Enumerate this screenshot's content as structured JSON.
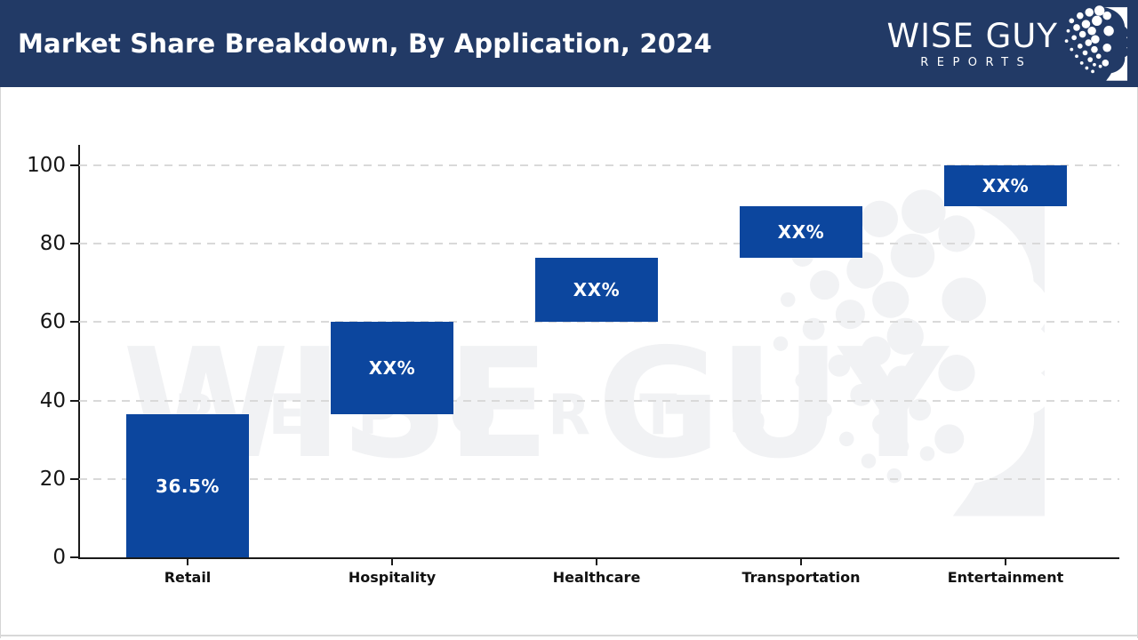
{
  "colors": {
    "header_bg": "#223a66",
    "bar": "#0c469e",
    "grid": "#d9d9d9",
    "axis": "#1a1a1a",
    "watermark": "#f1f2f4"
  },
  "header": {
    "title": "Market Share Breakdown, By Application, 2024",
    "logo_line1": "WISE GUY",
    "logo_line2": "REPORTS"
  },
  "watermark": {
    "line1": "WISE GUY",
    "line2": "REPORTS"
  },
  "chart_data": {
    "type": "bar",
    "subtype": "waterfall",
    "title": "Market Share Breakdown, By Application, 2024",
    "xlabel": "",
    "ylabel": "",
    "ylim": [
      0,
      105
    ],
    "yticks": [
      0,
      20,
      40,
      60,
      80,
      100
    ],
    "grid": "dashed horizontal",
    "legend": "none",
    "categories": [
      "Retail",
      "Hospitality",
      "Healthcare",
      "Transportation",
      "Entertainment"
    ],
    "bars": [
      {
        "category": "Retail",
        "start": 0,
        "end": 36.5,
        "value": 36.5,
        "label": "36.5%"
      },
      {
        "category": "Hospitality",
        "start": 36.5,
        "end": 60,
        "value": 23.5,
        "label": "XX%"
      },
      {
        "category": "Healthcare",
        "start": 60,
        "end": 76.5,
        "value": 16.5,
        "label": "XX%"
      },
      {
        "category": "Transportation",
        "start": 76.5,
        "end": 89.5,
        "value": 13,
        "label": "XX%"
      },
      {
        "category": "Entertainment",
        "start": 89.5,
        "end": 100,
        "value": 10.5,
        "label": "XX%"
      }
    ]
  }
}
